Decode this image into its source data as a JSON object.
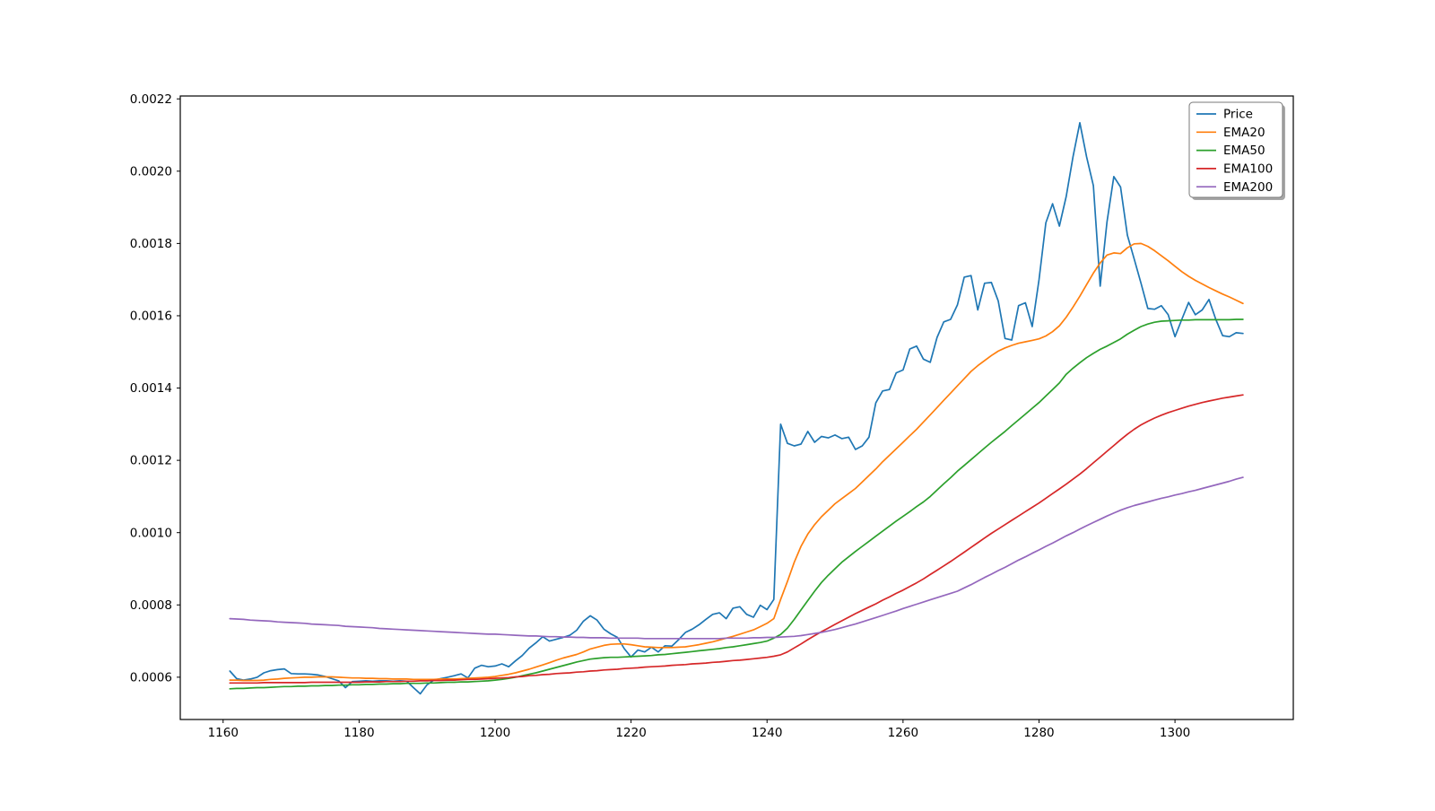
{
  "figure": {
    "background": "#ffffff",
    "spine_color": "#000000",
    "tick_color": "#000000"
  },
  "chart_data": {
    "type": "line",
    "title": "",
    "xlabel": "",
    "ylabel": "",
    "grid": false,
    "xlim": [
      1153.7,
      1317.4
    ],
    "ylim": [
      0.000483,
      0.002208
    ],
    "x_ticks": [
      1160,
      1180,
      1200,
      1220,
      1240,
      1260,
      1280,
      1300
    ],
    "x_tick_labels": [
      "1160",
      "1180",
      "1200",
      "1220",
      "1240",
      "1260",
      "1280",
      "1300"
    ],
    "y_ticks": [
      0.0006,
      0.0008,
      0.001,
      0.0012,
      0.0014,
      0.0016,
      0.0018,
      0.002,
      0.0022
    ],
    "y_tick_labels": [
      "0.0006",
      "0.0008",
      "0.0010",
      "0.0012",
      "0.0014",
      "0.0016",
      "0.0018",
      "0.0020",
      "0.0022"
    ],
    "legend": {
      "position": "upper right",
      "entries": [
        "Price",
        "EMA20",
        "EMA50",
        "EMA100",
        "EMA200"
      ]
    },
    "x_start": 1161,
    "x_step": 1,
    "series": [
      {
        "name": "Price",
        "color": "#1f77b4",
        "values": [
          0.000617,
          0.000596,
          0.000592,
          0.000595,
          0.0006,
          0.000612,
          0.000618,
          0.000621,
          0.000623,
          0.00061,
          0.000609,
          0.000609,
          0.000608,
          0.000606,
          0.000602,
          0.000596,
          0.00059,
          0.000571,
          0.000588,
          0.000589,
          0.00059,
          0.000589,
          0.00059,
          0.00059,
          0.000589,
          0.00059,
          0.000589,
          0.000571,
          0.000554,
          0.000579,
          0.000592,
          0.000596,
          0.0006,
          0.000604,
          0.000609,
          0.000598,
          0.000625,
          0.000633,
          0.000629,
          0.000631,
          0.000637,
          0.000629,
          0.000645,
          0.00066,
          0.00068,
          0.000695,
          0.000712,
          0.0007,
          0.000705,
          0.00071,
          0.000716,
          0.00073,
          0.000755,
          0.00077,
          0.000758,
          0.000733,
          0.00072,
          0.00071,
          0.000679,
          0.000656,
          0.000675,
          0.00067,
          0.000683,
          0.00067,
          0.000687,
          0.000686,
          0.000704,
          0.000724,
          0.000733,
          0.000745,
          0.00076,
          0.000774,
          0.000778,
          0.000762,
          0.000791,
          0.000795,
          0.000774,
          0.000766,
          0.000799,
          0.000787,
          0.000815,
          0.0013,
          0.001247,
          0.00124,
          0.001245,
          0.00128,
          0.00125,
          0.001266,
          0.001262,
          0.00127,
          0.00126,
          0.001264,
          0.00123,
          0.00124,
          0.001264,
          0.001359,
          0.001392,
          0.001396,
          0.001442,
          0.00145,
          0.001508,
          0.001516,
          0.00148,
          0.001471,
          0.00154,
          0.001583,
          0.00159,
          0.00163,
          0.001707,
          0.001711,
          0.001616,
          0.00169,
          0.001692,
          0.001641,
          0.001537,
          0.001533,
          0.001628,
          0.001636,
          0.00157,
          0.0017,
          0.001857,
          0.00191,
          0.001848,
          0.00193,
          0.00204,
          0.002134,
          0.00204,
          0.00196,
          0.001682,
          0.00186,
          0.001985,
          0.001956,
          0.001823,
          0.001757,
          0.00169,
          0.00162,
          0.001618,
          0.001628,
          0.001603,
          0.001542,
          0.00159,
          0.001637,
          0.001603,
          0.001616,
          0.001645,
          0.00159,
          0.001545,
          0.001542,
          0.001553,
          0.001551
        ]
      },
      {
        "name": "EMA20",
        "color": "#ff7f0e",
        "values": [
          0.000592,
          0.000592,
          0.000591,
          0.000591,
          0.000591,
          0.000592,
          0.000594,
          0.000595,
          0.000597,
          0.000598,
          0.000599,
          0.0006,
          0.0006,
          0.000601,
          0.000601,
          0.000601,
          0.0006,
          0.000599,
          0.000598,
          0.000598,
          0.000597,
          0.000597,
          0.000596,
          0.000596,
          0.000595,
          0.000595,
          0.000595,
          0.000594,
          0.000594,
          0.000594,
          0.000594,
          0.000595,
          0.000595,
          0.000595,
          0.000596,
          0.000597,
          0.000598,
          0.000599,
          0.0006,
          0.000602,
          0.000605,
          0.000608,
          0.000612,
          0.000617,
          0.000622,
          0.000628,
          0.000634,
          0.00064,
          0.000647,
          0.000653,
          0.000658,
          0.000663,
          0.00067,
          0.000678,
          0.000683,
          0.000688,
          0.000691,
          0.000692,
          0.000692,
          0.00069,
          0.000687,
          0.000684,
          0.000683,
          0.000682,
          0.000682,
          0.000682,
          0.000683,
          0.000684,
          0.000687,
          0.00069,
          0.000694,
          0.000698,
          0.000703,
          0.000708,
          0.000713,
          0.000719,
          0.000725,
          0.000731,
          0.00074,
          0.000749,
          0.000762,
          0.000815,
          0.000865,
          0.000918,
          0.000962,
          0.000996,
          0.001022,
          0.001044,
          0.001062,
          0.00108,
          0.001094,
          0.001108,
          0.001122,
          0.00114,
          0.001158,
          0.001176,
          0.001196,
          0.001214,
          0.001232,
          0.00125,
          0.001268,
          0.001286,
          0.001306,
          0.001326,
          0.001346,
          0.001366,
          0.001386,
          0.001406,
          0.001426,
          0.001446,
          0.001462,
          0.001476,
          0.00149,
          0.001502,
          0.001511,
          0.001518,
          0.001524,
          0.001528,
          0.001532,
          0.001536,
          0.001544,
          0.001556,
          0.001572,
          0.001596,
          0.001624,
          0.001654,
          0.001686,
          0.001718,
          0.001746,
          0.001768,
          0.001774,
          0.001772,
          0.001788,
          0.001799,
          0.0018,
          0.001792,
          0.00178,
          0.001766,
          0.001752,
          0.001737,
          0.001722,
          0.001709,
          0.001698,
          0.001688,
          0.001678,
          0.001669,
          0.00166,
          0.001652,
          0.001643,
          0.001634
        ]
      },
      {
        "name": "EMA50",
        "color": "#2ca02c",
        "values": [
          0.000568,
          0.000569,
          0.000569,
          0.00057,
          0.000571,
          0.000571,
          0.000572,
          0.000573,
          0.000574,
          0.000574,
          0.000575,
          0.000575,
          0.000576,
          0.000576,
          0.000577,
          0.000577,
          0.000578,
          0.000578,
          0.000579,
          0.000579,
          0.00058,
          0.00058,
          0.000581,
          0.000581,
          0.000582,
          0.000582,
          0.000583,
          0.000583,
          0.000583,
          0.000584,
          0.000584,
          0.000585,
          0.000586,
          0.000586,
          0.000587,
          0.000587,
          0.000588,
          0.000589,
          0.00059,
          0.000592,
          0.000594,
          0.000597,
          0.0006,
          0.000604,
          0.000608,
          0.000612,
          0.000617,
          0.000622,
          0.000627,
          0.000632,
          0.000637,
          0.000642,
          0.000646,
          0.00065,
          0.000652,
          0.000654,
          0.000655,
          0.000655,
          0.000656,
          0.000657,
          0.000658,
          0.000659,
          0.00066,
          0.000662,
          0.000663,
          0.000665,
          0.000667,
          0.000669,
          0.000671,
          0.000673,
          0.000675,
          0.000677,
          0.000679,
          0.000682,
          0.000684,
          0.000687,
          0.00069,
          0.000693,
          0.000696,
          0.0007,
          0.000708,
          0.000718,
          0.000736,
          0.00076,
          0.000786,
          0.000812,
          0.000838,
          0.000862,
          0.000882,
          0.0009,
          0.000918,
          0.000933,
          0.000948,
          0.000962,
          0.000976,
          0.00099,
          0.001004,
          0.001018,
          0.001032,
          0.001045,
          0.001058,
          0.001072,
          0.001085,
          0.0011,
          0.001118,
          0.001135,
          0.001152,
          0.00117,
          0.001186,
          0.001202,
          0.001218,
          0.001234,
          0.00125,
          0.001265,
          0.00128,
          0.001296,
          0.001312,
          0.001328,
          0.001344,
          0.00136,
          0.001378,
          0.001396,
          0.001414,
          0.001438,
          0.001455,
          0.00147,
          0.001484,
          0.001496,
          0.001507,
          0.001516,
          0.001526,
          0.001536,
          0.001549,
          0.00156,
          0.00157,
          0.001577,
          0.001582,
          0.001585,
          0.001586,
          0.001587,
          0.001588,
          0.001588,
          0.001589,
          0.001589,
          0.001589,
          0.001589,
          0.001589,
          0.001589,
          0.00159,
          0.00159
        ]
      },
      {
        "name": "EMA100",
        "color": "#d62728",
        "values": [
          0.000584,
          0.000584,
          0.000584,
          0.000584,
          0.000584,
          0.000585,
          0.000585,
          0.000585,
          0.000585,
          0.000585,
          0.000585,
          0.000585,
          0.000586,
          0.000586,
          0.000586,
          0.000586,
          0.000586,
          0.000586,
          0.000586,
          0.000586,
          0.000587,
          0.000587,
          0.000587,
          0.000588,
          0.000588,
          0.000588,
          0.000589,
          0.000589,
          0.00059,
          0.00059,
          0.000591,
          0.000591,
          0.000592,
          0.000592,
          0.000593,
          0.000594,
          0.000594,
          0.000595,
          0.000596,
          0.000597,
          0.000598,
          0.000599,
          0.000601,
          0.000602,
          0.000604,
          0.000605,
          0.000607,
          0.000608,
          0.00061,
          0.000611,
          0.000612,
          0.000614,
          0.000615,
          0.000617,
          0.000618,
          0.00062,
          0.000621,
          0.000622,
          0.000624,
          0.000625,
          0.000626,
          0.000628,
          0.000629,
          0.00063,
          0.000631,
          0.000633,
          0.000634,
          0.000635,
          0.000637,
          0.000638,
          0.000639,
          0.000641,
          0.000642,
          0.000644,
          0.000646,
          0.000647,
          0.000649,
          0.000651,
          0.000653,
          0.000655,
          0.000658,
          0.000662,
          0.00067,
          0.000681,
          0.000692,
          0.000704,
          0.000715,
          0.000726,
          0.000736,
          0.000746,
          0.000756,
          0.000766,
          0.000776,
          0.000785,
          0.000794,
          0.000803,
          0.000813,
          0.000822,
          0.000832,
          0.000841,
          0.000851,
          0.000861,
          0.000872,
          0.000884,
          0.000896,
          0.000908,
          0.00092,
          0.000933,
          0.000946,
          0.000959,
          0.000972,
          0.000985,
          0.000998,
          0.00101,
          0.001022,
          0.001034,
          0.001046,
          0.001058,
          0.00107,
          0.001082,
          0.001095,
          0.001108,
          0.001121,
          0.001134,
          0.001148,
          0.001162,
          0.001177,
          0.001193,
          0.001209,
          0.001225,
          0.001241,
          0.001257,
          0.001272,
          0.001286,
          0.001298,
          0.001308,
          0.001317,
          0.001325,
          0.001332,
          0.001338,
          0.001344,
          0.00135,
          0.001355,
          0.00136,
          0.001364,
          0.001368,
          0.001372,
          0.001375,
          0.001378,
          0.001381
        ]
      },
      {
        "name": "EMA200",
        "color": "#9467bd",
        "values": [
          0.000762,
          0.000761,
          0.00076,
          0.000758,
          0.000757,
          0.000756,
          0.000755,
          0.000753,
          0.000752,
          0.000751,
          0.00075,
          0.000749,
          0.000747,
          0.000746,
          0.000745,
          0.000744,
          0.000743,
          0.000741,
          0.00074,
          0.000739,
          0.000738,
          0.000737,
          0.000735,
          0.000734,
          0.000733,
          0.000732,
          0.000731,
          0.00073,
          0.000729,
          0.000728,
          0.000727,
          0.000726,
          0.000725,
          0.000724,
          0.000723,
          0.000722,
          0.000721,
          0.00072,
          0.000719,
          0.000719,
          0.000718,
          0.000717,
          0.000716,
          0.000715,
          0.000714,
          0.000714,
          0.000713,
          0.000712,
          0.000712,
          0.000711,
          0.000711,
          0.00071,
          0.00071,
          0.000709,
          0.000709,
          0.000709,
          0.000708,
          0.000708,
          0.000708,
          0.000708,
          0.000708,
          0.000707,
          0.000707,
          0.000707,
          0.000707,
          0.000707,
          0.000707,
          0.000707,
          0.000707,
          0.000707,
          0.000707,
          0.000707,
          0.000707,
          0.000708,
          0.000708,
          0.000708,
          0.000708,
          0.000709,
          0.000709,
          0.00071,
          0.00071,
          0.000711,
          0.000712,
          0.000713,
          0.000715,
          0.000718,
          0.000721,
          0.000724,
          0.000728,
          0.000732,
          0.000737,
          0.000742,
          0.000747,
          0.000753,
          0.000759,
          0.000765,
          0.000771,
          0.000777,
          0.000783,
          0.00079,
          0.000796,
          0.000802,
          0.000808,
          0.000814,
          0.00082,
          0.000826,
          0.000832,
          0.000838,
          0.000847,
          0.000856,
          0.000866,
          0.000876,
          0.000885,
          0.000895,
          0.000904,
          0.000914,
          0.000924,
          0.000933,
          0.000943,
          0.000952,
          0.000962,
          0.000971,
          0.000981,
          0.000991,
          0.001,
          0.00101,
          0.001019,
          0.001028,
          0.001037,
          0.001046,
          0.001054,
          0.001062,
          0.001069,
          0.001075,
          0.00108,
          0.001085,
          0.00109,
          0.001095,
          0.001099,
          0.001104,
          0.001108,
          0.001113,
          0.001117,
          0.001122,
          0.001127,
          0.001132,
          0.001137,
          0.001142,
          0.001148,
          0.001153
        ]
      }
    ]
  }
}
